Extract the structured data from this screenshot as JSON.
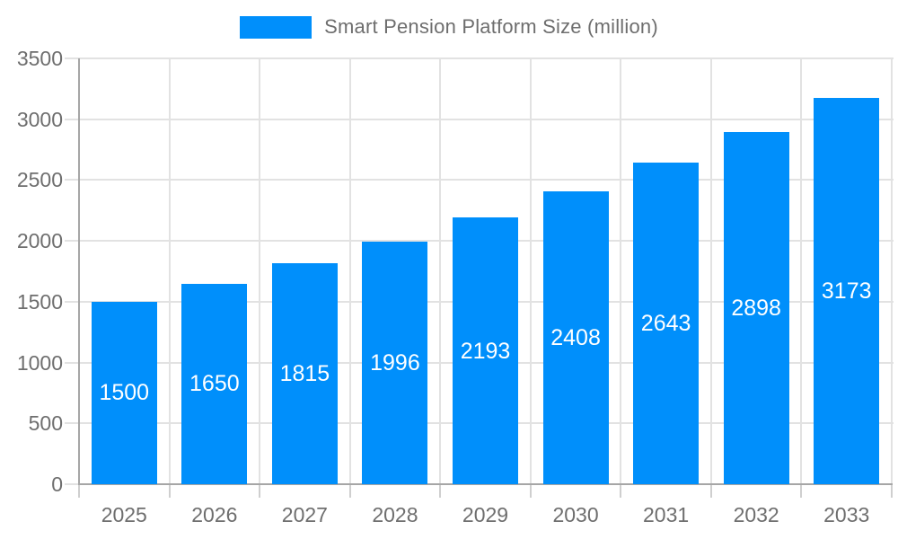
{
  "chart_data": {
    "type": "bar",
    "title": "Smart Pension Platform Size (million)",
    "categories": [
      "2025",
      "2026",
      "2027",
      "2028",
      "2029",
      "2030",
      "2031",
      "2032",
      "2033"
    ],
    "values": [
      1500,
      1650,
      1815,
      1996,
      2193,
      2408,
      2643,
      2898,
      3173
    ],
    "series": [
      {
        "name": "Smart Pension Platform Size (million)",
        "values": [
          1500,
          1650,
          1815,
          1996,
          2193,
          2408,
          2643,
          2898,
          3173
        ]
      }
    ],
    "xlabel": "",
    "ylabel": "",
    "ylim": [
      0,
      3500
    ],
    "yticks": [
      0,
      500,
      1000,
      1500,
      2000,
      2500,
      3000,
      3500
    ],
    "grid": true,
    "legend_position": "top",
    "value_label_position": "inside-center",
    "colors": {
      "bar": "#008FFB",
      "value_label": "#FFFFFF",
      "axis_text": "#6E6E6E",
      "grid": "#E2E2E2",
      "axis_line": "#A6A6A6",
      "tick": "#CFCFCF",
      "background": "#FFFFFF"
    }
  }
}
